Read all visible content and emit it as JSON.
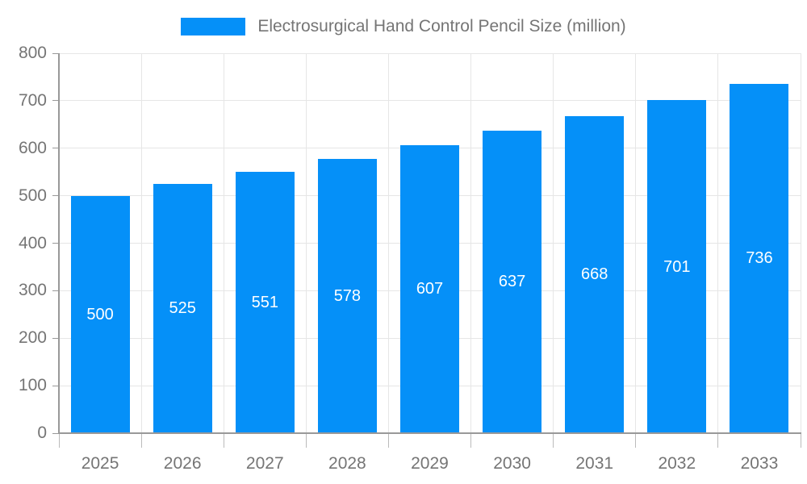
{
  "legend": {
    "label": "Electrosurgical Hand Control Pencil Size (million)"
  },
  "colors": {
    "bar": "#0590f8",
    "grid": "#e6e6e6",
    "axis": "#999999",
    "tick": "#bbbbbb",
    "axis_text": "#757575",
    "value_label_text": "#ffffff"
  },
  "chart_data": {
    "type": "bar",
    "title": "Electrosurgical Hand Control Pencil Size (million)",
    "categories": [
      "2025",
      "2026",
      "2027",
      "2028",
      "2029",
      "2030",
      "2031",
      "2032",
      "2033"
    ],
    "values": [
      500,
      525,
      551,
      578,
      607,
      637,
      668,
      701,
      736
    ],
    "xlabel": "",
    "ylabel": "",
    "ylim": [
      0,
      800
    ],
    "yticks": [
      0,
      100,
      200,
      300,
      400,
      500,
      600,
      700,
      800
    ],
    "grid": true,
    "legend_position": "top",
    "value_labels": "inside-center"
  }
}
